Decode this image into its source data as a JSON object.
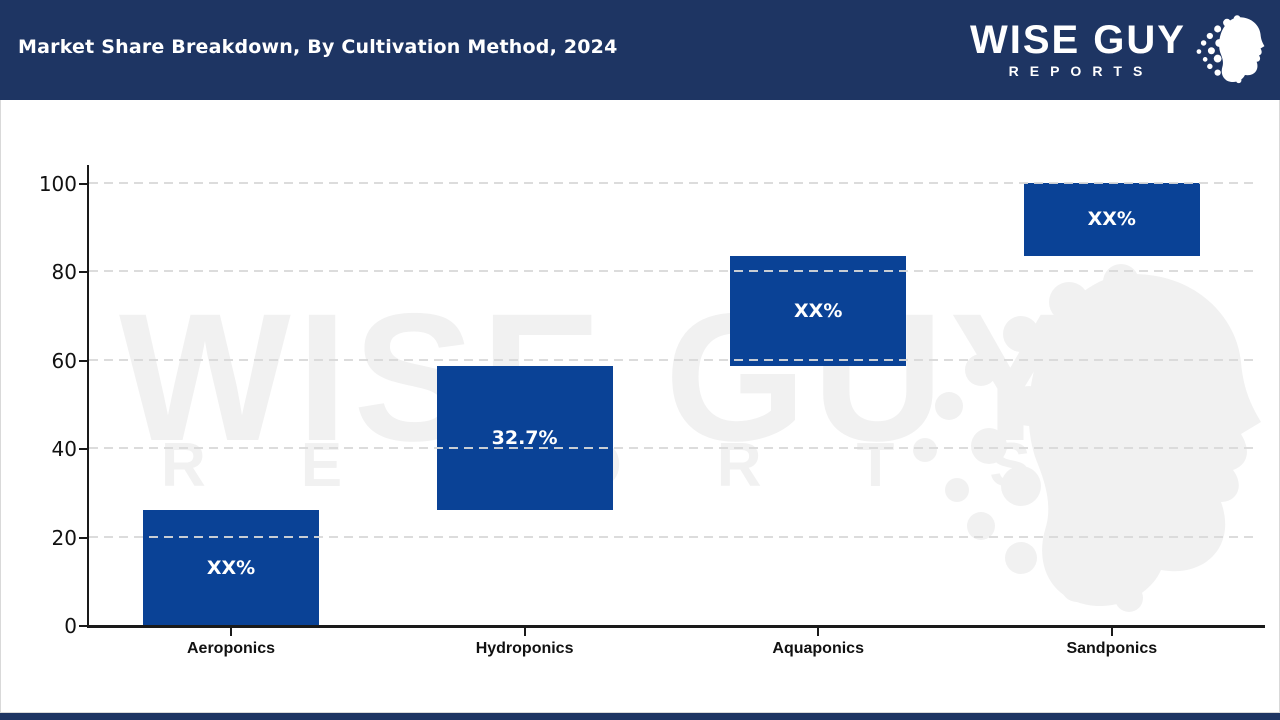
{
  "header": {
    "title": "Market Share Breakdown, By Cultivation Method, 2024",
    "logo": {
      "primary": "WISE GUY",
      "secondary": "REPORTS"
    }
  },
  "watermark": {
    "primary": "WISE GUY",
    "secondary": "REPORTS"
  },
  "colors": {
    "header_bg": "#1e3563",
    "footer_bg": "#1e3563",
    "bar": "#0a4296",
    "bar_label": "#ffffff",
    "gridline": "#d9d9d9",
    "axis": "#1a1a1a",
    "watermark": "#f1f1f1"
  },
  "chart_data": {
    "type": "bar",
    "subtype": "waterfall",
    "title": "Market Share Breakdown, By Cultivation Method, 2024",
    "categories": [
      "Aeroponics",
      "Hydroponics",
      "Aquaponics",
      "Sandponics"
    ],
    "segments": [
      {
        "category": "Aeroponics",
        "start": 0,
        "end": 26,
        "label": "XX%"
      },
      {
        "category": "Hydroponics",
        "start": 26,
        "end": 58.7,
        "label": "32.7%",
        "value": 32.7
      },
      {
        "category": "Aquaponics",
        "start": 58.7,
        "end": 83.5,
        "label": "XX%"
      },
      {
        "category": "Sandponics",
        "start": 83.5,
        "end": 100,
        "label": "XX%"
      }
    ],
    "yticks": [
      0,
      20,
      40,
      60,
      80,
      100
    ],
    "ylim": [
      0,
      104.5
    ],
    "xlabel": "",
    "ylabel": "",
    "grid": "dashed-horizontal-over-bars",
    "legend": "none"
  }
}
